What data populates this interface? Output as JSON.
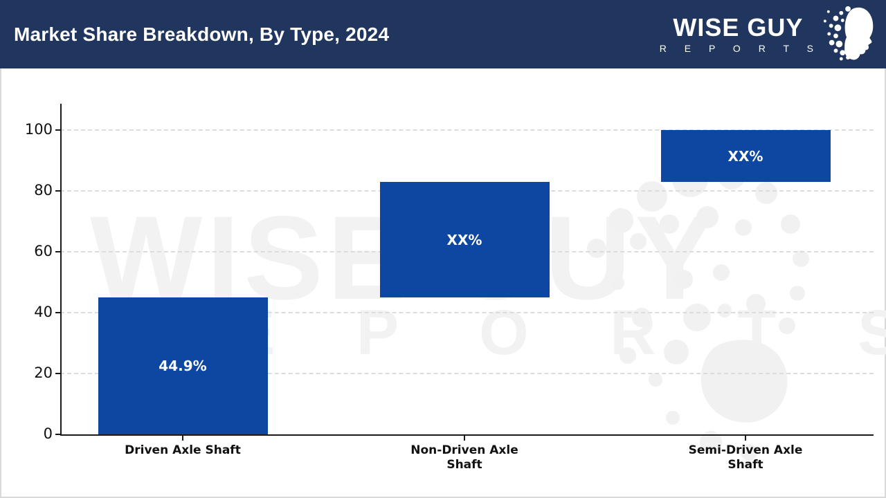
{
  "header": {
    "title": "Market Share Breakdown, By Type, 2024",
    "bg_color": "#21365f",
    "logo": {
      "brand_line1": "WISE GUY",
      "brand_line2": "R E P O R T S",
      "face_icon": "dotted-face-profile"
    }
  },
  "chart_data": {
    "type": "bar",
    "variant": "stacked-percentage-waterfall",
    "title": "Market Share Breakdown, By Type, 2024",
    "categories": [
      "Driven Axle Shaft",
      "Non-Driven Axle Shaft",
      "Semi-Driven Axle Shaft"
    ],
    "category_label_lines": [
      [
        "Driven Axle Shaft"
      ],
      [
        "Non-Driven Axle",
        "Shaft"
      ],
      [
        "Semi-Driven Axle",
        "Shaft"
      ]
    ],
    "series": [
      {
        "name": "Driven Axle Shaft",
        "start": 0,
        "end": 44.9,
        "value": 44.9,
        "label": "44.9%"
      },
      {
        "name": "Non-Driven Axle Shaft",
        "start": 44.9,
        "end": 82.8,
        "value": 37.9,
        "label": "XX%"
      },
      {
        "name": "Semi-Driven Axle Shaft",
        "start": 82.8,
        "end": 99.9,
        "value": 17.1,
        "label": "XX%"
      }
    ],
    "xlabel": "",
    "ylabel": "",
    "ylim": [
      0,
      108
    ],
    "yticks": [
      0,
      20,
      40,
      60,
      80,
      100
    ],
    "grid": "horizontal-dashed",
    "legend": "none",
    "bar_color": "#0d47a1",
    "bar_label_color": "#ffffff",
    "axis_color": "#1a1a1a",
    "gridline_color": "#dcdcdc"
  },
  "watermark": {
    "line1": "WISE GUY",
    "line2": "R E P O R T S"
  }
}
